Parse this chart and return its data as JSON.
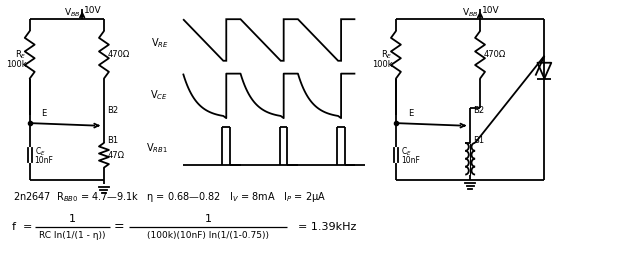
{
  "bg_color": "#ffffff",
  "fig_width": 6.2,
  "fig_height": 2.67,
  "dpi": 100,
  "lc": "#000000",
  "lw": 1.3,
  "vbb_label": "V$_{BB}$",
  "vbb_val": "10V",
  "re_label": "R$_E$",
  "re_val": "100k",
  "ce_label": "C$_E$",
  "ce_val": "10nF",
  "r470_label": "470Ω",
  "r47_label": "47Ω",
  "b1_label": "B1",
  "b2_label": "B2",
  "e_label": "E",
  "vre_label": "V$_{RE}$",
  "vce_label": "V$_{CE}$",
  "vrb1_label": "V$_{RB1}$",
  "spec_text": "2n2647  R$_{BB0}$ = 4.7—9.1k   η = 0.68—0.82   I$_V$ = 8mA   I$_P$ = 2μA"
}
